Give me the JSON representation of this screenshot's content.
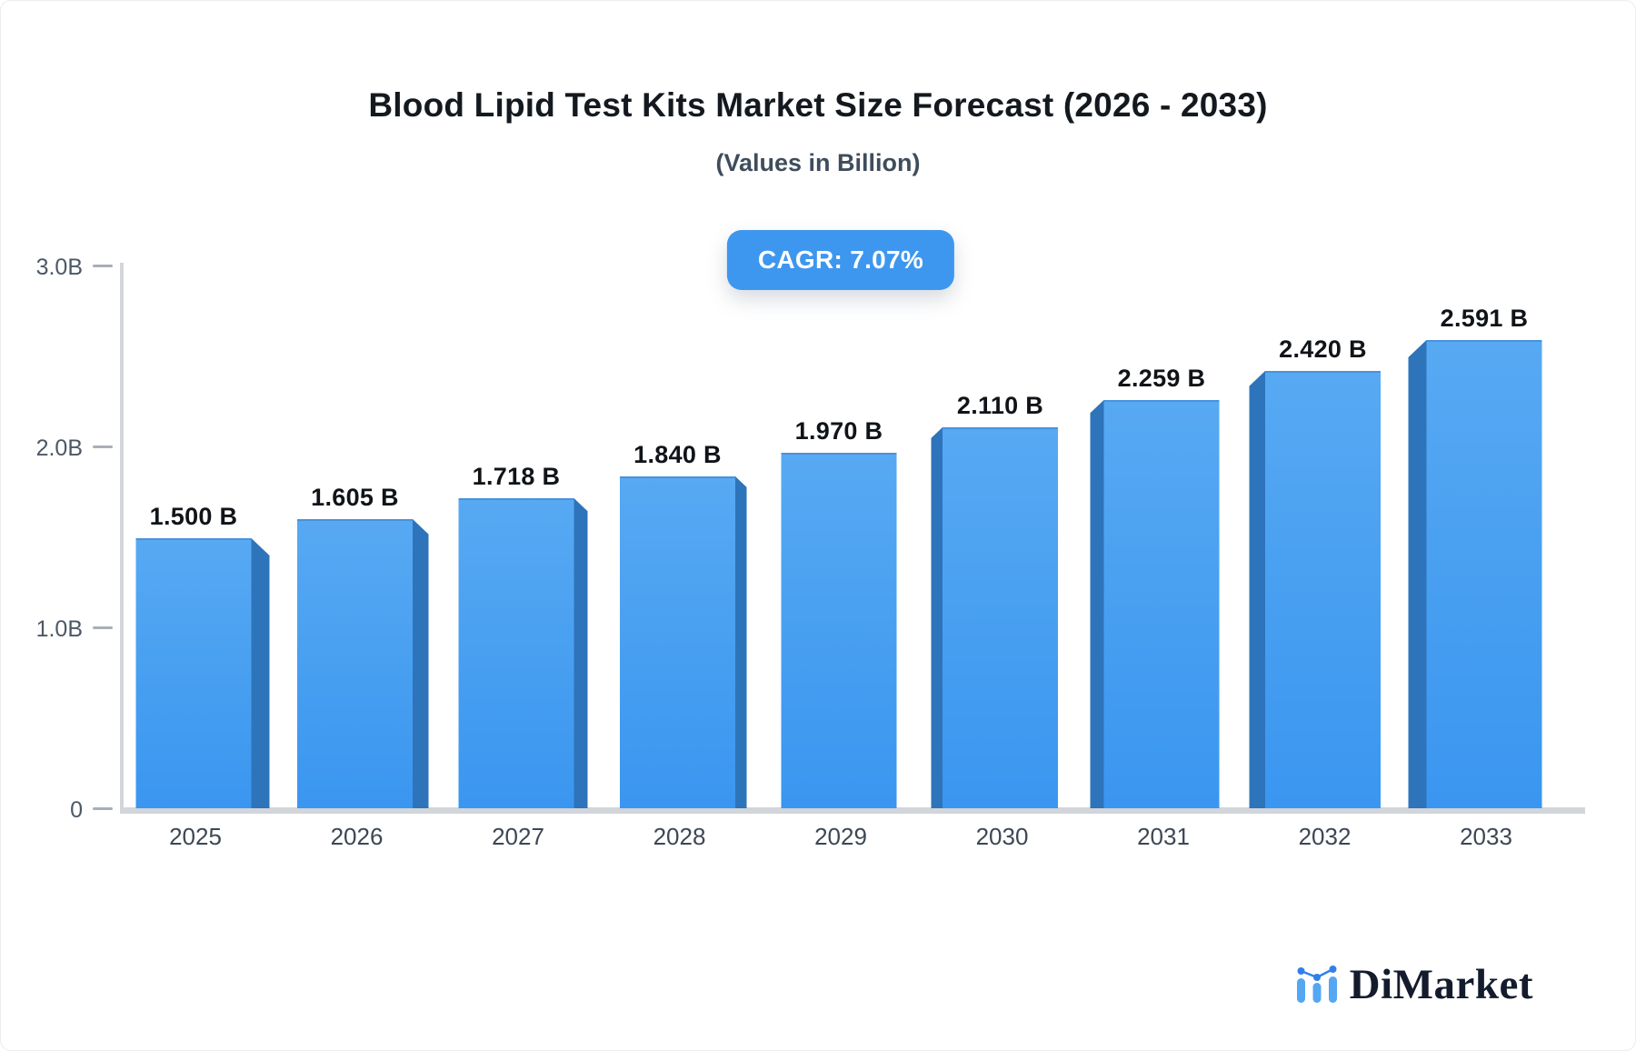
{
  "chart_data": {
    "type": "bar",
    "title": "Blood Lipid Test Kits Market Size Forecast (2026 - 2033)",
    "subtitle": "(Values in Billion)",
    "cagr_badge": "CAGR: 7.07%",
    "categories": [
      "2025",
      "2026",
      "2027",
      "2028",
      "2029",
      "2030",
      "2031",
      "2032",
      "2033"
    ],
    "values": [
      1.5,
      1.605,
      1.718,
      1.84,
      1.97,
      2.11,
      2.259,
      2.42,
      2.591
    ],
    "value_labels": [
      "1.500 B",
      "1.605 B",
      "1.718 B",
      "1.840 B",
      "1.970 B",
      "2.110 B",
      "2.259 B",
      "2.420 B",
      "2.591 B"
    ],
    "unit": "Billion",
    "ylim": [
      0,
      3
    ],
    "yticks": [
      {
        "label": "3.0B",
        "value": 3.0
      },
      {
        "label": "2.0B",
        "value": 2.0
      },
      {
        "label": "1.0B",
        "value": 1.0
      },
      {
        "label": "0",
        "value": 0.0
      }
    ],
    "grid": false,
    "legend": false,
    "bar_style": "3d-perspective-center-vanishing"
  },
  "colors": {
    "accent": "#3e97ef",
    "bar_front_top": "#57a9f2",
    "bar_front_bottom": "#3a96f0",
    "bar_side": "#2e74ba",
    "bar_top_edge": "#4186d2",
    "axis": "#d2d5da",
    "tick": "#a9aeb6",
    "y_label": "#4c5866",
    "x_label": "#3d4754",
    "value_label": "#101418",
    "logo_bar": "#55a7f3",
    "logo_dot": "#3180ea"
  },
  "logo": {
    "text": "DiMarket",
    "icon": "mini-bar-line-chart-icon"
  }
}
